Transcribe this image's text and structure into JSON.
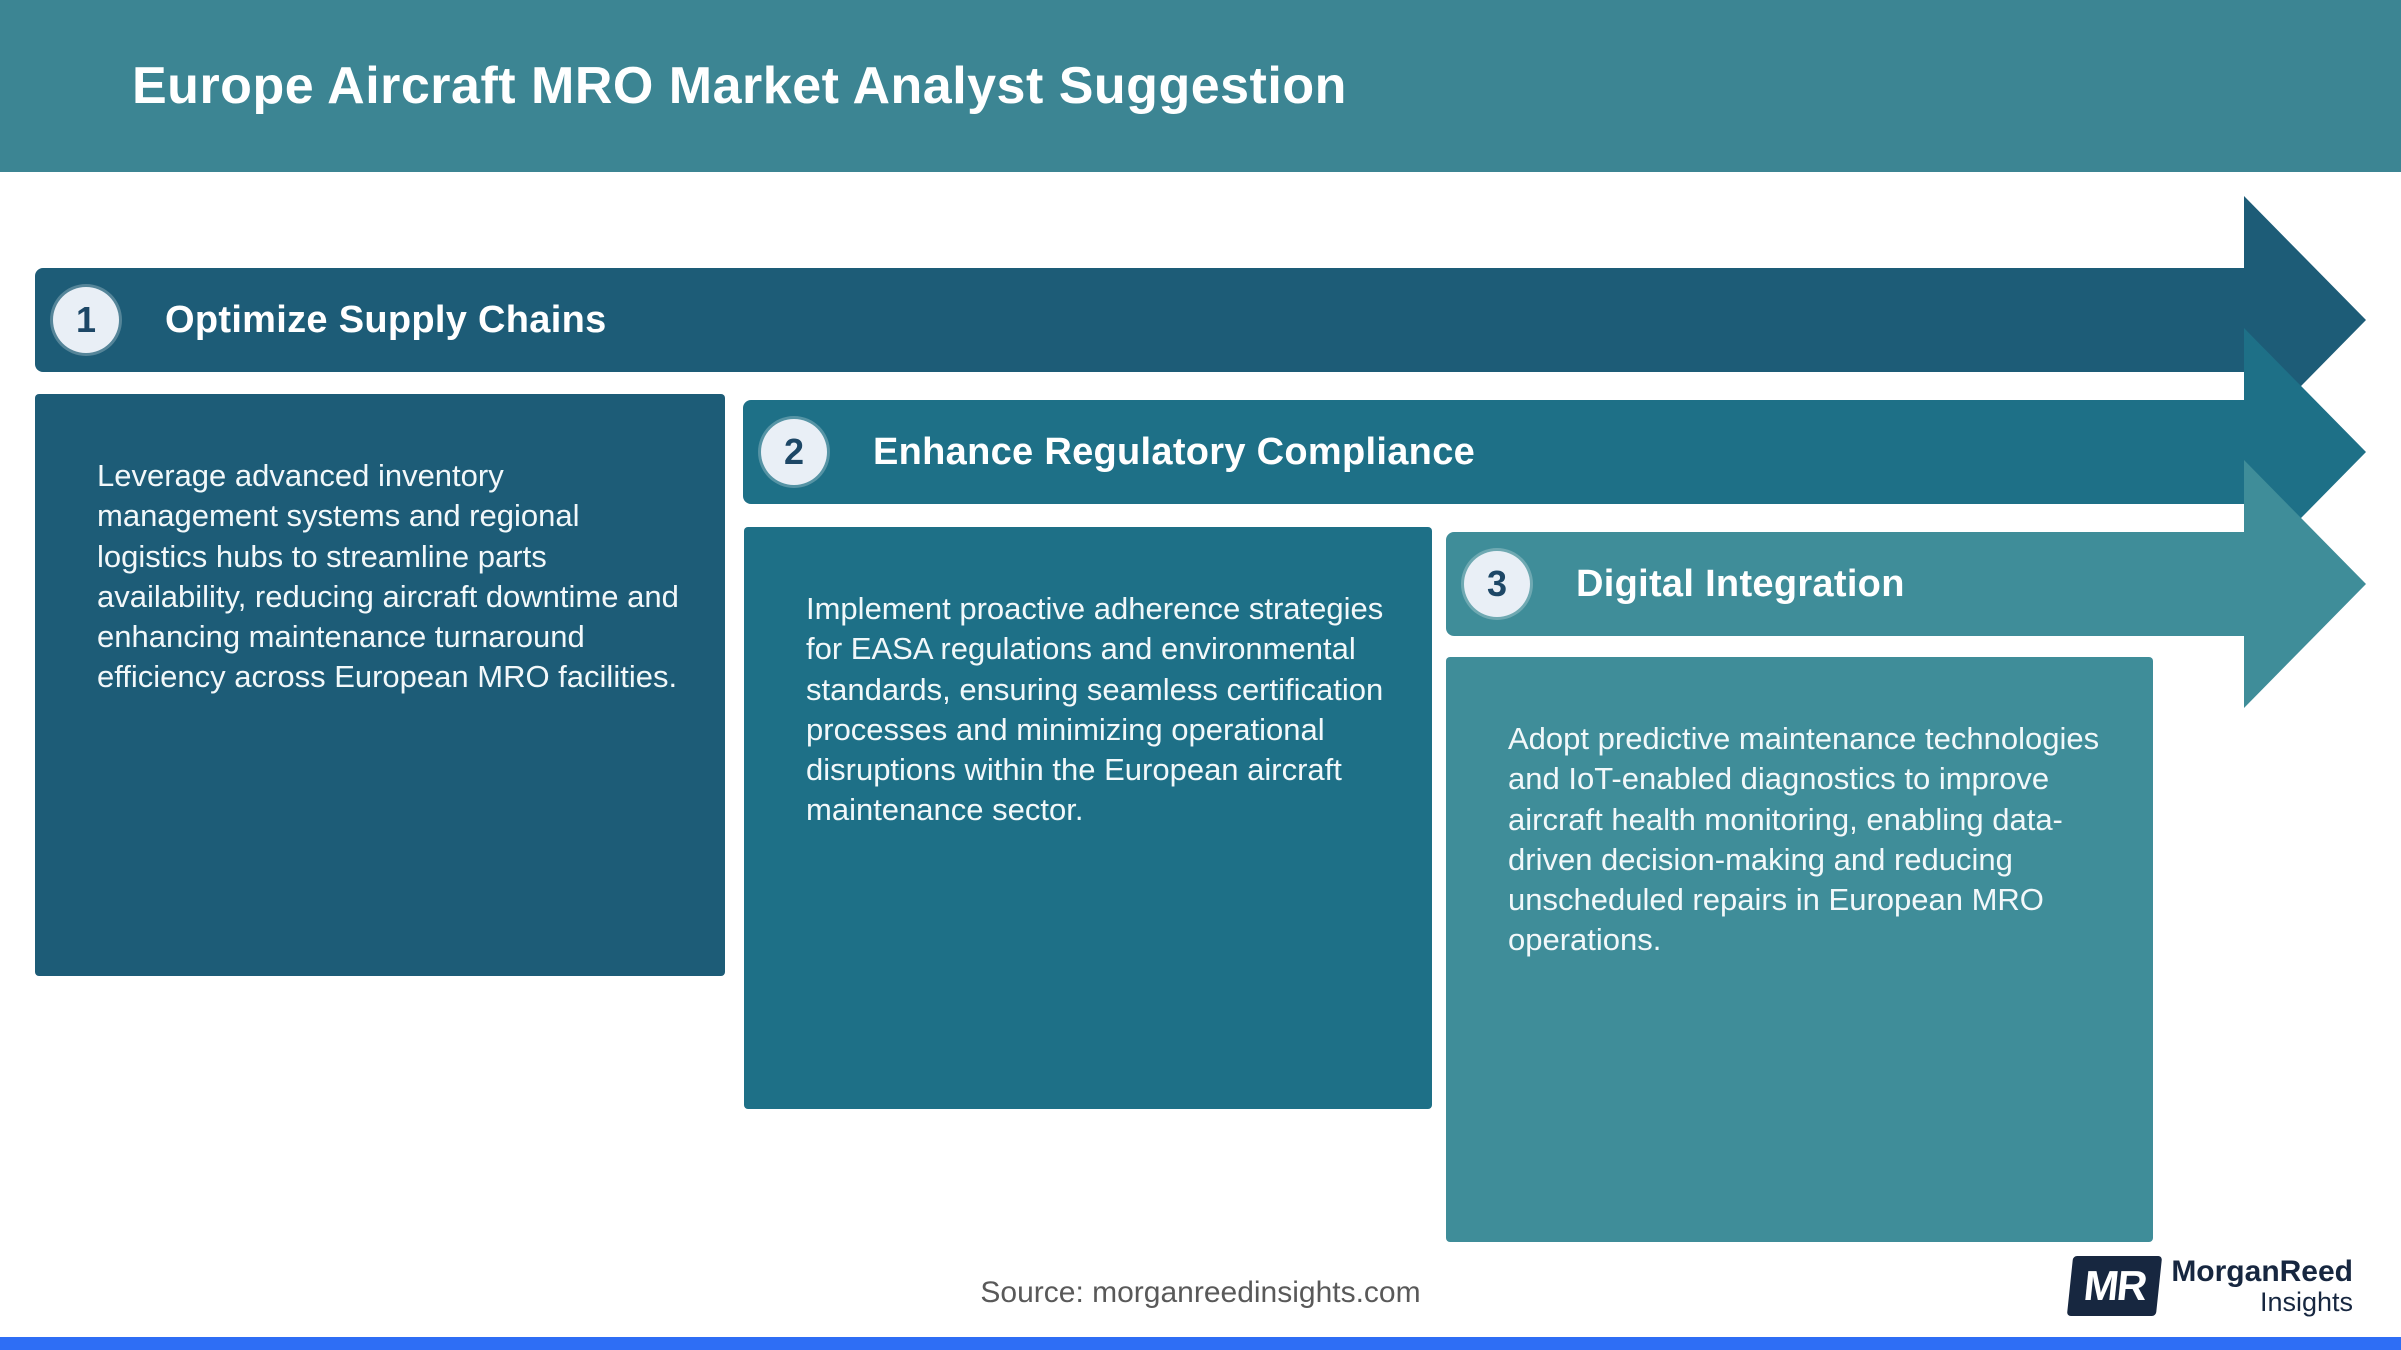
{
  "title": "Europe Aircraft MRO Market Analyst Suggestion",
  "steps": [
    {
      "number": "1",
      "label": "Optimize Supply Chains",
      "description": "Leverage advanced inventory management systems and regional logistics hubs to streamline parts availability, reducing aircraft downtime and enhancing maintenance turnaround efficiency across European MRO facilities."
    },
    {
      "number": "2",
      "label": "Enhance Regulatory Compliance",
      "description": "Implement proactive adherence strategies for EASA regulations and environmental standards, ensuring seamless certification processes and minimizing operational disruptions within the European aircraft maintenance sector."
    },
    {
      "number": "3",
      "label": "Digital Integration",
      "description": "Adopt predictive maintenance technologies and IoT-enabled diagnostics to improve aircraft health monitoring, enabling data-driven decision-making and reducing unscheduled repairs in European MRO operations."
    }
  ],
  "footer": {
    "source": "Source: morganreedinsights.com",
    "logo_mark": "MR",
    "logo_line1": "MorganReed",
    "logo_line2": "Insights"
  },
  "colors": {
    "header_teal": "#3c8593",
    "step1": "#1d5c77",
    "step2": "#1e7087",
    "step3": "#3f8d99",
    "accent_strip": "#2e6ef5",
    "number_circle_bg": "#e9eff6",
    "number_circle_text": "#1d4766"
  }
}
